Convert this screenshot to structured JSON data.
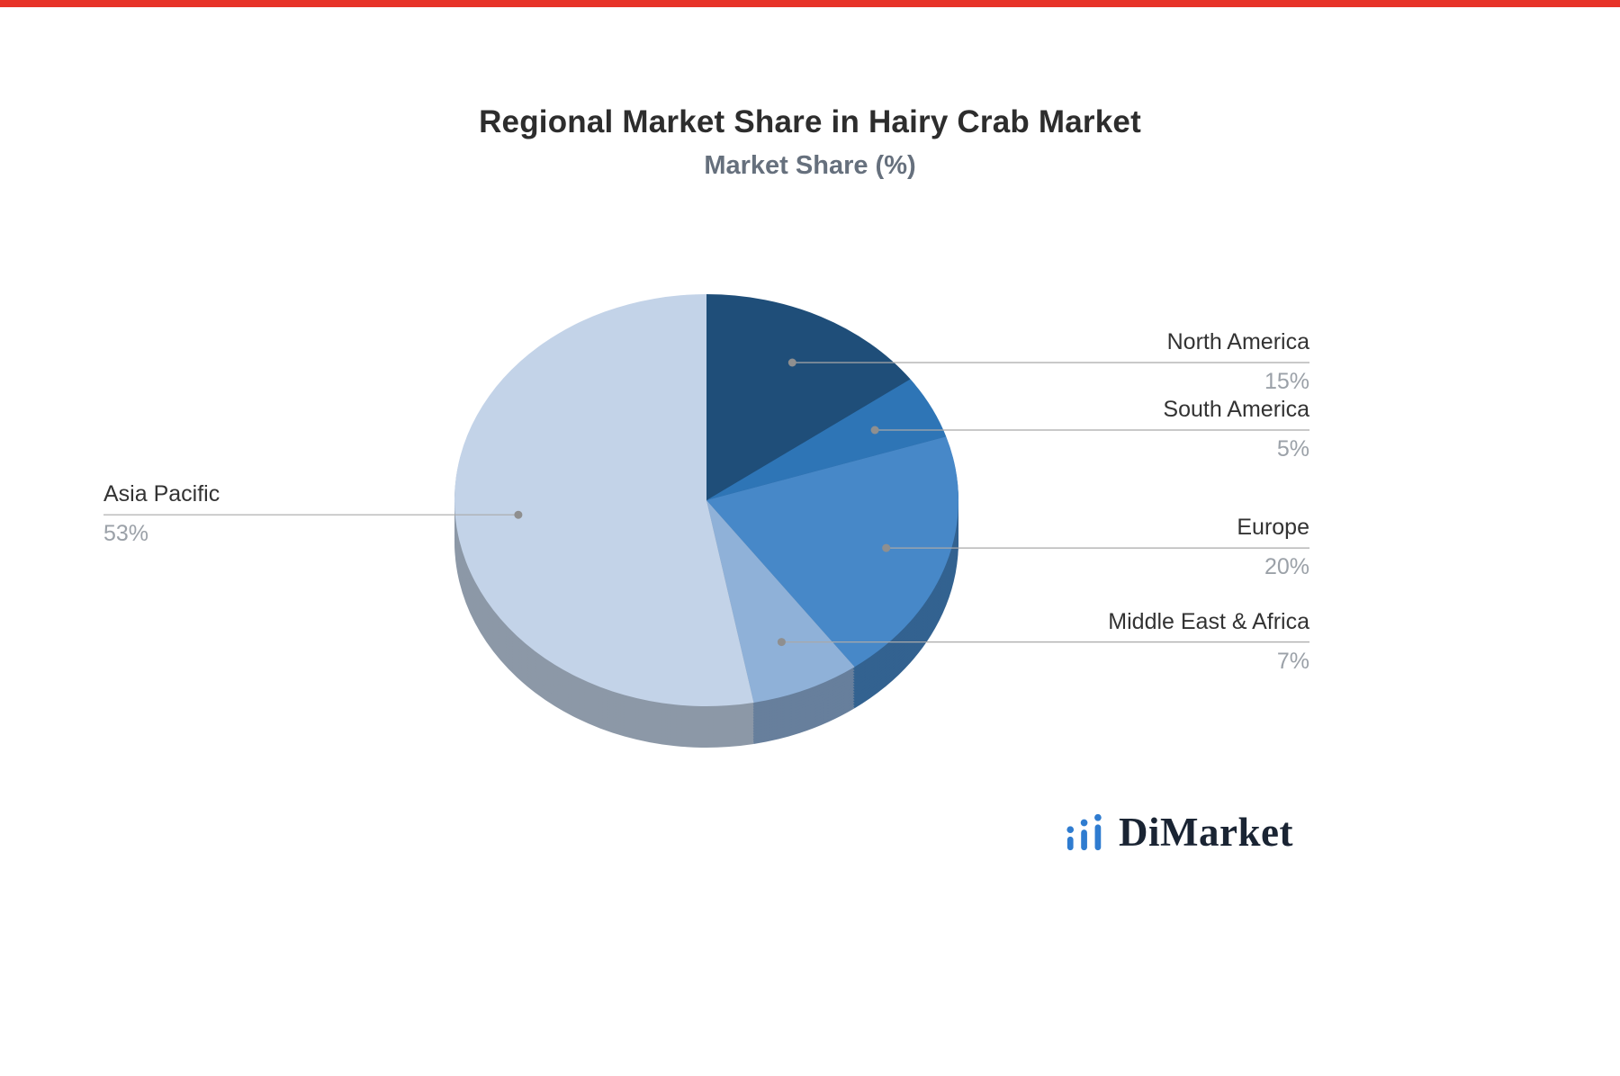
{
  "header": {
    "title": "Regional Market Share in Hairy Crab Market",
    "subtitle": "Market Share (%)"
  },
  "chart_data": {
    "type": "pie",
    "title": "Regional Market Share in Hairy Crab Market",
    "subtitle": "Market Share (%)",
    "unit": "%",
    "effect": "3d",
    "start_angle_deg": 0,
    "direction": "clockwise",
    "legend_position": "none",
    "labels": "callout",
    "segments": [
      {
        "label": "North America",
        "value": 15,
        "display": "15%",
        "color": "#1F4E79"
      },
      {
        "label": "South America",
        "value": 5,
        "display": "5%",
        "color": "#2E75B6"
      },
      {
        "label": "Europe",
        "value": 20,
        "display": "20%",
        "color": "#4788C8"
      },
      {
        "label": "Middle East & Africa",
        "value": 7,
        "display": "7%",
        "color": "#8FB1D8"
      },
      {
        "label": "Asia Pacific",
        "value": 53,
        "display": "53%",
        "color": "#C3D3E8"
      }
    ]
  },
  "branding": {
    "logo_text": "DiMarket"
  },
  "theme": {
    "top_accent_color": "#e73328",
    "logo_icon_color": "#2F7CD0",
    "callout_line_color": "#a9a9a9",
    "callout_dot_color": "#8f8f8f",
    "label_color": "#333333",
    "value_color": "#9ba1a8"
  }
}
